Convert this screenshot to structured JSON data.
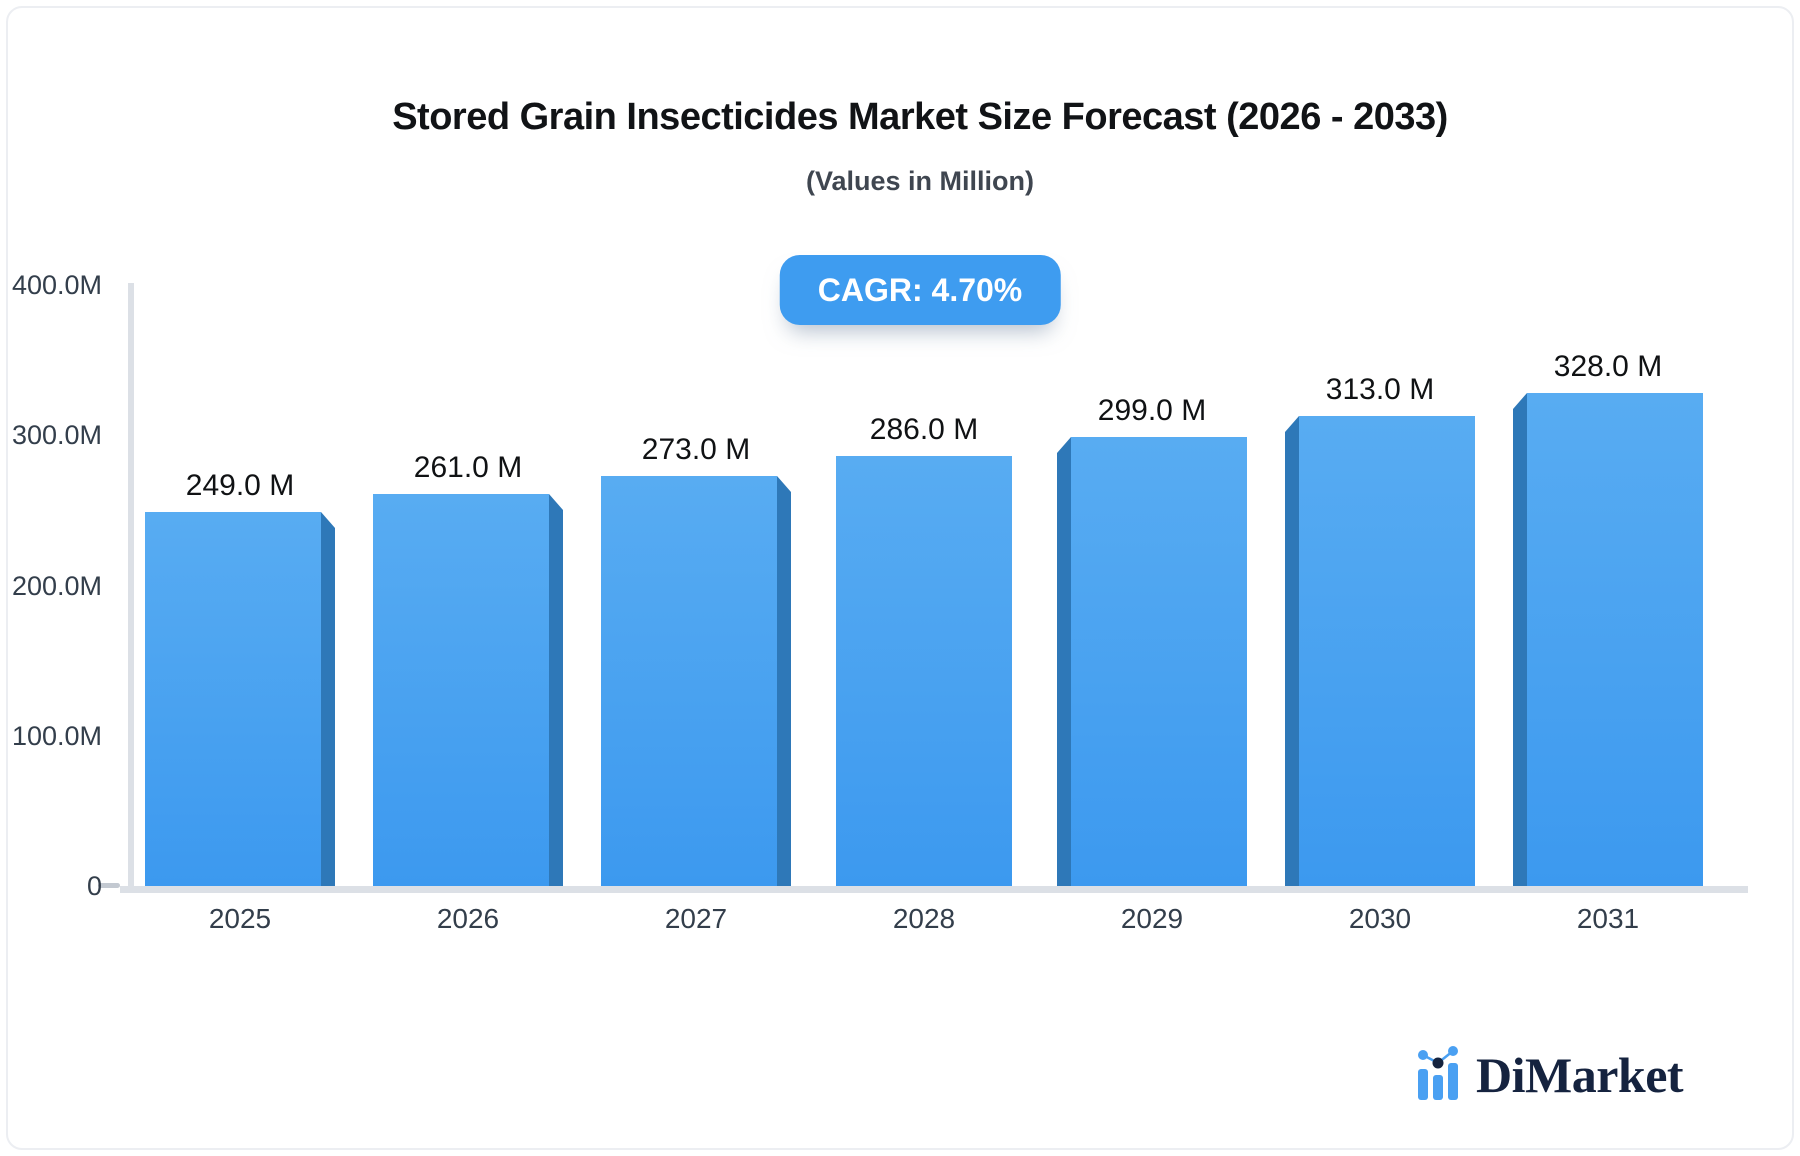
{
  "header": {
    "title": "Stored Grain Insecticides Market Size Forecast (2026 - 2033)",
    "subtitle": "(Values in Million)",
    "cagr_label": "CAGR: 4.70%"
  },
  "brand": {
    "name": "DiMarket",
    "icon": "mini-bar-chart-icon"
  },
  "colors": {
    "bar_face_top": "#58ACF2",
    "bar_face_bottom": "#3C99EF",
    "bar_side": "#2E78B8",
    "badge_bg": "#3E9CF0",
    "axis": "#DCE0E6",
    "label_dark": "#333E4B",
    "value_label": "#101214",
    "logo_navy": "#15233F",
    "logo_blue": "#4AA0F2"
  },
  "chart_data": {
    "type": "bar",
    "title": "Stored Grain Insecticides Market Size Forecast (2026 - 2033)",
    "subtitle": "(Values in Million)",
    "cagr": "CAGR: 4.70%",
    "unit": "Million",
    "categories": [
      "2025",
      "2026",
      "2027",
      "2028",
      "2029",
      "2030",
      "2031"
    ],
    "values": [
      249.0,
      261.0,
      273.0,
      286.0,
      299.0,
      313.0,
      328.0
    ],
    "value_labels": [
      "249.0 M",
      "261.0 M",
      "273.0 M",
      "286.0 M",
      "299.0 M",
      "313.0 M",
      "328.0 M"
    ],
    "ylim": [
      0,
      400
    ],
    "yticks": [
      {
        "label": "400.0M",
        "value": 400
      },
      {
        "label": "300.0M",
        "value": 300
      },
      {
        "label": "200.0M",
        "value": 200
      },
      {
        "label": "100.0M",
        "value": 100
      },
      {
        "label": "0",
        "value": 0
      }
    ],
    "grid": false,
    "legend": false,
    "bar_style": "3d-bevel"
  }
}
